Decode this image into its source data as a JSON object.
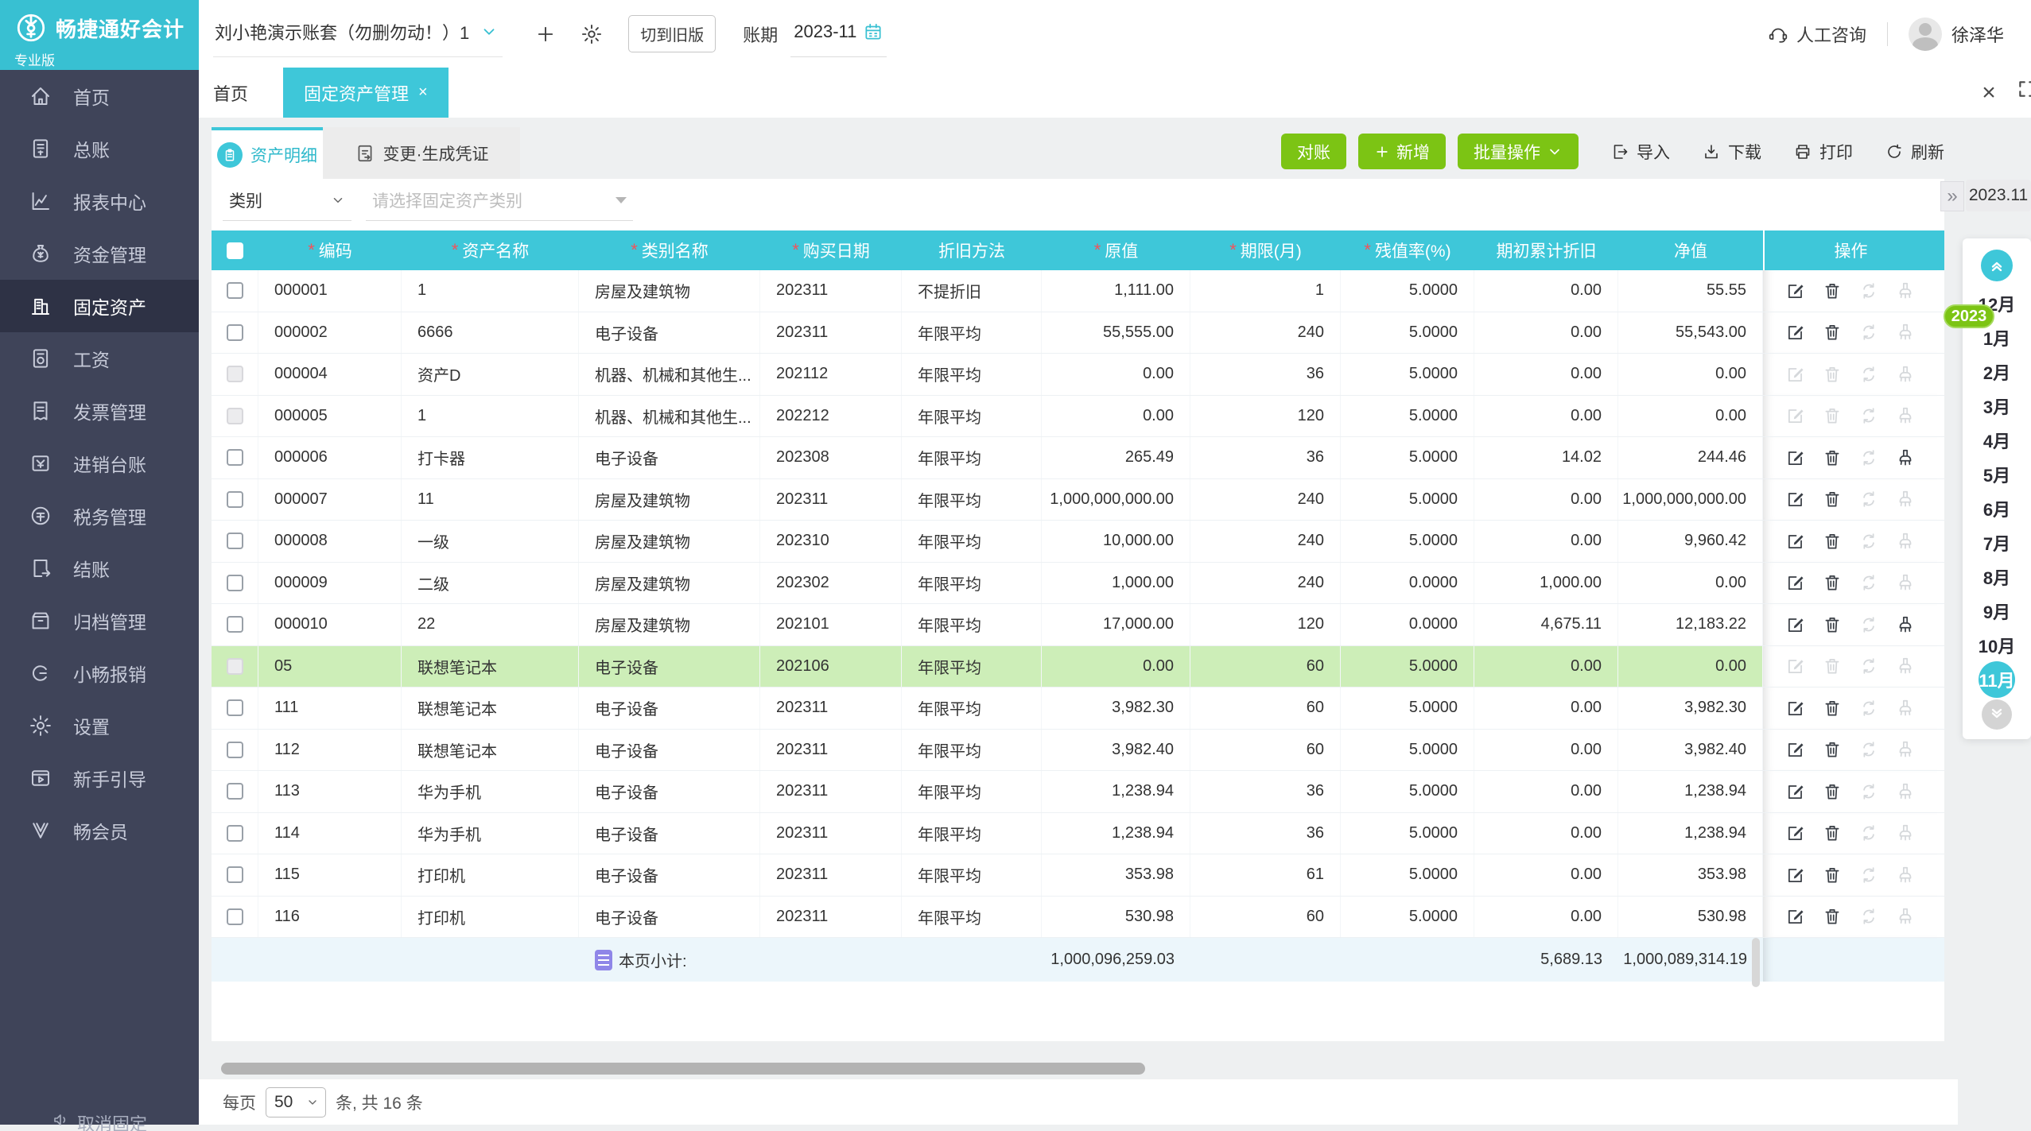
{
  "colors": {
    "accent": "#3ec7d9",
    "green": "#7cc414",
    "sidebar_bg": "#3f4459",
    "sidebar_active_bg": "#2e3245",
    "row_highlight": "#cdeeb8",
    "summary_bg": "#ecf6fb",
    "required_red": "#f3525a"
  },
  "topbar": {
    "brand": "畅捷通好会计",
    "edition": "专业版",
    "account": "刘小艳演示账套（勿删勿动！）1",
    "switch_old_label": "切到旧版",
    "period_label": "账期",
    "period_value": "2023-11",
    "support_label": "人工咨询",
    "user_name": "徐泽华"
  },
  "tabs": {
    "home": "首页",
    "active": "固定资产管理",
    "close_glyph": "×"
  },
  "sidebar": {
    "unpin_label": "取消固定",
    "items": [
      {
        "label": "首页",
        "icon": "home",
        "active": false
      },
      {
        "label": "总账",
        "icon": "ledger",
        "active": false
      },
      {
        "label": "报表中心",
        "icon": "report",
        "active": false
      },
      {
        "label": "资金管理",
        "icon": "fund",
        "active": false
      },
      {
        "label": "固定资产",
        "icon": "asset",
        "active": true
      },
      {
        "label": "工资",
        "icon": "payroll",
        "active": false
      },
      {
        "label": "发票管理",
        "icon": "invoice",
        "active": false
      },
      {
        "label": "进销台账",
        "icon": "purchase",
        "active": false
      },
      {
        "label": "税务管理",
        "icon": "tax",
        "active": false
      },
      {
        "label": "结账",
        "icon": "settle",
        "active": false
      },
      {
        "label": "归档管理",
        "icon": "archive",
        "active": false
      },
      {
        "label": "小畅报销",
        "icon": "reimburse",
        "active": false
      },
      {
        "label": "设置",
        "icon": "gear",
        "active": false
      },
      {
        "label": "新手引导",
        "icon": "guide",
        "active": false
      },
      {
        "label": "畅会员",
        "icon": "member",
        "active": false
      }
    ]
  },
  "panel": {
    "tab_detail": "资产明细",
    "tab_change": "变更·生成凭证",
    "toolbar_primary": [
      {
        "label": "对账"
      },
      {
        "label": "新增",
        "prefix_icon": "plus"
      },
      {
        "label": "批量操作",
        "suffix_icon": "chevron-down"
      }
    ],
    "toolbar_secondary": [
      {
        "label": "导入",
        "icon": "import"
      },
      {
        "label": "下载",
        "icon": "download"
      },
      {
        "label": "打印",
        "icon": "print"
      },
      {
        "label": "刷新",
        "icon": "refresh"
      }
    ],
    "filter_field": "类别",
    "filter_placeholder": "请选择固定资产类别"
  },
  "table": {
    "columns": [
      {
        "label": "",
        "required": false
      },
      {
        "label": "编码",
        "required": true
      },
      {
        "label": "资产名称",
        "required": true
      },
      {
        "label": "类别名称",
        "required": true
      },
      {
        "label": "购买日期",
        "required": true
      },
      {
        "label": "折旧方法",
        "required": false
      },
      {
        "label": "原值",
        "required": true
      },
      {
        "label": "期限(月)",
        "required": true
      },
      {
        "label": "残值率(%)",
        "required": true
      },
      {
        "label": "期初累计折旧",
        "required": false
      },
      {
        "label": "净值",
        "required": false
      },
      {
        "label": "操作",
        "required": false
      }
    ],
    "rows": [
      {
        "code": "000001",
        "name": "1",
        "category": "房屋及建筑物",
        "buy_date": "202311",
        "method": "不提折旧",
        "original_value": "1,111.00",
        "months": "1",
        "residual_rate": "5.0000",
        "initial_depreciation": "0.00",
        "net_value": "55.55",
        "checkbox_disabled": false,
        "highlighted": false,
        "ops": {
          "edit": true,
          "delete": true,
          "voucher": false,
          "clean": false
        }
      },
      {
        "code": "000002",
        "name": "6666",
        "category": "电子设备",
        "buy_date": "202311",
        "method": "年限平均",
        "original_value": "55,555.00",
        "months": "240",
        "residual_rate": "5.0000",
        "initial_depreciation": "0.00",
        "net_value": "55,543.00",
        "checkbox_disabled": false,
        "highlighted": false,
        "ops": {
          "edit": true,
          "delete": true,
          "voucher": false,
          "clean": false
        }
      },
      {
        "code": "000004",
        "name": "资产D",
        "category": "机器、机械和其他生...",
        "buy_date": "202112",
        "method": "年限平均",
        "original_value": "0.00",
        "months": "36",
        "residual_rate": "5.0000",
        "initial_depreciation": "0.00",
        "net_value": "0.00",
        "checkbox_disabled": true,
        "highlighted": false,
        "ops": {
          "edit": false,
          "delete": false,
          "voucher": false,
          "clean": false
        }
      },
      {
        "code": "000005",
        "name": "1",
        "category": "机器、机械和其他生...",
        "buy_date": "202212",
        "method": "年限平均",
        "original_value": "0.00",
        "months": "120",
        "residual_rate": "5.0000",
        "initial_depreciation": "0.00",
        "net_value": "0.00",
        "checkbox_disabled": true,
        "highlighted": false,
        "ops": {
          "edit": false,
          "delete": false,
          "voucher": false,
          "clean": false
        }
      },
      {
        "code": "000006",
        "name": "打卡器",
        "category": "电子设备",
        "buy_date": "202308",
        "method": "年限平均",
        "original_value": "265.49",
        "months": "36",
        "residual_rate": "5.0000",
        "initial_depreciation": "14.02",
        "net_value": "244.46",
        "checkbox_disabled": false,
        "highlighted": false,
        "ops": {
          "edit": true,
          "delete": true,
          "voucher": false,
          "clean": true
        }
      },
      {
        "code": "000007",
        "name": "11",
        "category": "房屋及建筑物",
        "buy_date": "202311",
        "method": "年限平均",
        "original_value": "1,000,000,000.00",
        "months": "240",
        "residual_rate": "5.0000",
        "initial_depreciation": "0.00",
        "net_value": "1,000,000,000.00",
        "checkbox_disabled": false,
        "highlighted": false,
        "ops": {
          "edit": true,
          "delete": true,
          "voucher": false,
          "clean": false
        }
      },
      {
        "code": "000008",
        "name": "一级",
        "category": "房屋及建筑物",
        "buy_date": "202310",
        "method": "年限平均",
        "original_value": "10,000.00",
        "months": "240",
        "residual_rate": "5.0000",
        "initial_depreciation": "0.00",
        "net_value": "9,960.42",
        "checkbox_disabled": false,
        "highlighted": false,
        "ops": {
          "edit": true,
          "delete": true,
          "voucher": false,
          "clean": false
        }
      },
      {
        "code": "000009",
        "name": "二级",
        "category": "房屋及建筑物",
        "buy_date": "202302",
        "method": "年限平均",
        "original_value": "1,000.00",
        "months": "240",
        "residual_rate": "0.0000",
        "initial_depreciation": "1,000.00",
        "net_value": "0.00",
        "checkbox_disabled": false,
        "highlighted": false,
        "ops": {
          "edit": true,
          "delete": true,
          "voucher": false,
          "clean": false
        }
      },
      {
        "code": "000010",
        "name": "22",
        "category": "房屋及建筑物",
        "buy_date": "202101",
        "method": "年限平均",
        "original_value": "17,000.00",
        "months": "120",
        "residual_rate": "0.0000",
        "initial_depreciation": "4,675.11",
        "net_value": "12,183.22",
        "checkbox_disabled": false,
        "highlighted": false,
        "ops": {
          "edit": true,
          "delete": true,
          "voucher": false,
          "clean": true
        }
      },
      {
        "code": "05",
        "name": "联想笔记本",
        "category": "电子设备",
        "buy_date": "202106",
        "method": "年限平均",
        "original_value": "0.00",
        "months": "60",
        "residual_rate": "5.0000",
        "initial_depreciation": "0.00",
        "net_value": "0.00",
        "checkbox_disabled": true,
        "highlighted": true,
        "ops": {
          "edit": false,
          "delete": false,
          "voucher": false,
          "clean": false
        }
      },
      {
        "code": "111",
        "name": "联想笔记本",
        "category": "电子设备",
        "buy_date": "202311",
        "method": "年限平均",
        "original_value": "3,982.30",
        "months": "60",
        "residual_rate": "5.0000",
        "initial_depreciation": "0.00",
        "net_value": "3,982.30",
        "checkbox_disabled": false,
        "highlighted": false,
        "ops": {
          "edit": true,
          "delete": true,
          "voucher": false,
          "clean": false
        }
      },
      {
        "code": "112",
        "name": "联想笔记本",
        "category": "电子设备",
        "buy_date": "202311",
        "method": "年限平均",
        "original_value": "3,982.40",
        "months": "60",
        "residual_rate": "5.0000",
        "initial_depreciation": "0.00",
        "net_value": "3,982.40",
        "checkbox_disabled": false,
        "highlighted": false,
        "ops": {
          "edit": true,
          "delete": true,
          "voucher": false,
          "clean": false
        }
      },
      {
        "code": "113",
        "name": "华为手机",
        "category": "电子设备",
        "buy_date": "202311",
        "method": "年限平均",
        "original_value": "1,238.94",
        "months": "36",
        "residual_rate": "5.0000",
        "initial_depreciation": "0.00",
        "net_value": "1,238.94",
        "checkbox_disabled": false,
        "highlighted": false,
        "ops": {
          "edit": true,
          "delete": true,
          "voucher": false,
          "clean": false
        }
      },
      {
        "code": "114",
        "name": "华为手机",
        "category": "电子设备",
        "buy_date": "202311",
        "method": "年限平均",
        "original_value": "1,238.94",
        "months": "36",
        "residual_rate": "5.0000",
        "initial_depreciation": "0.00",
        "net_value": "1,238.94",
        "checkbox_disabled": false,
        "highlighted": false,
        "ops": {
          "edit": true,
          "delete": true,
          "voucher": false,
          "clean": false
        }
      },
      {
        "code": "115",
        "name": "打印机",
        "category": "电子设备",
        "buy_date": "202311",
        "method": "年限平均",
        "original_value": "353.98",
        "months": "61",
        "residual_rate": "5.0000",
        "initial_depreciation": "0.00",
        "net_value": "353.98",
        "checkbox_disabled": false,
        "highlighted": false,
        "ops": {
          "edit": true,
          "delete": true,
          "voucher": false,
          "clean": false
        }
      },
      {
        "code": "116",
        "name": "打印机",
        "category": "电子设备",
        "buy_date": "202311",
        "method": "年限平均",
        "original_value": "530.98",
        "months": "60",
        "residual_rate": "5.0000",
        "initial_depreciation": "0.00",
        "net_value": "530.98",
        "checkbox_disabled": false,
        "highlighted": false,
        "ops": {
          "edit": true,
          "delete": true,
          "voucher": false,
          "clean": false
        }
      }
    ],
    "summary": {
      "label": "本页小计:",
      "original_value": "1,000,096,259.03",
      "initial_depreciation": "5,689.13",
      "net_value": "1,000,089,314.19"
    }
  },
  "pagination": {
    "per_page_label": "每页",
    "per_page_value": "50",
    "suffix": "条, 共 16 条"
  },
  "calendar": {
    "collapse_glyph": "»",
    "period": "2023.11",
    "year_badge": "2023",
    "months": [
      "12月",
      "1月",
      "2月",
      "3月",
      "4月",
      "5月",
      "6月",
      "7月",
      "8月",
      "9月",
      "10月",
      "11月"
    ],
    "selected_month": "11月"
  }
}
